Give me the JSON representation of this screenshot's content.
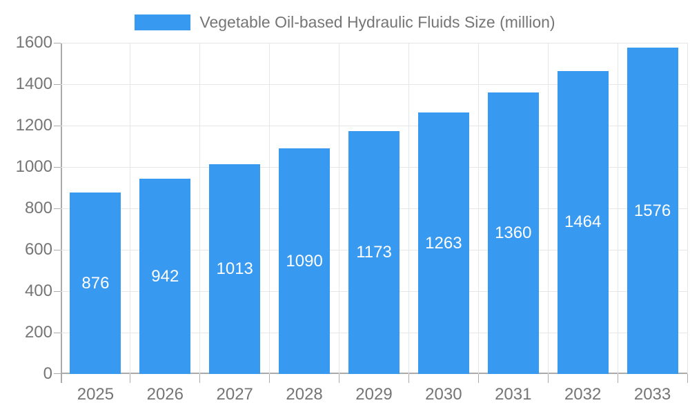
{
  "chart_data": {
    "type": "bar",
    "title": "Vegetable Oil-based Hydraulic Fluids Size (million)",
    "legend_label": "Vegetable Oil-based Hydraulic Fluids Size (million)",
    "legend_position": "top",
    "categories": [
      "2025",
      "2026",
      "2027",
      "2028",
      "2029",
      "2030",
      "2031",
      "2032",
      "2033"
    ],
    "series": [
      {
        "name": "Vegetable Oil-based Hydraulic Fluids Size (million)",
        "values": [
          876,
          942,
          1013,
          1090,
          1173,
          1263,
          1360,
          1464,
          1576
        ]
      }
    ],
    "value_labels": [
      "876",
      "942",
      "1013",
      "1090",
      "1173",
      "1263",
      "1360",
      "1464",
      "1576"
    ],
    "xlabel": "",
    "ylabel": "",
    "ylim": [
      0,
      1600
    ],
    "y_ticks": [
      0,
      200,
      400,
      600,
      800,
      1000,
      1200,
      1400,
      1600
    ],
    "grid": true,
    "colors": {
      "bar": "#3899F0",
      "bar_value_text": "#ffffff",
      "axis_text": "#757575",
      "gridline": "#e6e6e6",
      "axis_line": "#aaaaaa",
      "background": "#ffffff"
    }
  }
}
